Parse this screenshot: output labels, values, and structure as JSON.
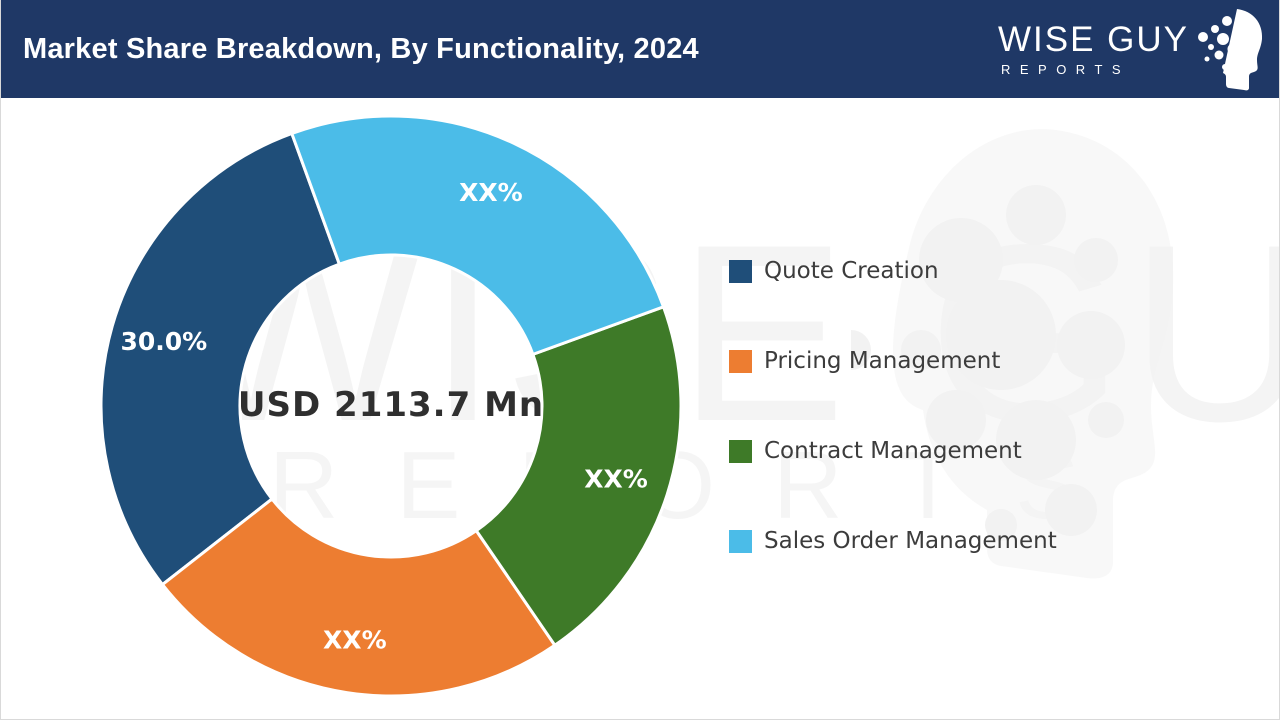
{
  "header": {
    "title": "Market Share Breakdown, By Functionality, 2024",
    "logo": {
      "line1": "WISE GUY",
      "line2": "REPORTS"
    }
  },
  "watermark": {
    "line1": "WISE GUY",
    "line2": "REPORTS"
  },
  "chart_data": {
    "type": "pie",
    "subtype": "donut",
    "title": "Market Share Breakdown, By Functionality, 2024",
    "center_label": "USD 2113.7 Mn",
    "start_angle_deg": 110,
    "direction": "counterclockwise",
    "donut_hole_ratio": 0.52,
    "legend_position": "right",
    "segments": [
      {
        "name": "Quote Creation",
        "value_pct": 30.0,
        "label": "30.0%",
        "color": "#1f4e79"
      },
      {
        "name": "Pricing Management",
        "value_pct": 24.0,
        "label": "XX%",
        "color": "#ed7d31"
      },
      {
        "name": "Contract Management",
        "value_pct": 21.0,
        "label": "XX%",
        "color": "#3e7a28"
      },
      {
        "name": "Sales Order Management",
        "value_pct": 25.0,
        "label": "XX%",
        "color": "#4bbce8"
      }
    ],
    "legend": [
      {
        "label": "Quote Creation",
        "color": "#1f4e79"
      },
      {
        "label": "Pricing Management",
        "color": "#ed7d31"
      },
      {
        "label": "Contract Management",
        "color": "#3e7a28"
      },
      {
        "label": "Sales Order Management",
        "color": "#4bbce8"
      }
    ]
  },
  "colors": {
    "header_bg": "#1f3866",
    "page_border": "#d9d9d9",
    "slice_label_text": "#ffffff",
    "center_label_text": "#2f2f2f",
    "legend_text": "#3c3c3c",
    "watermark": "#f4f4f4"
  }
}
